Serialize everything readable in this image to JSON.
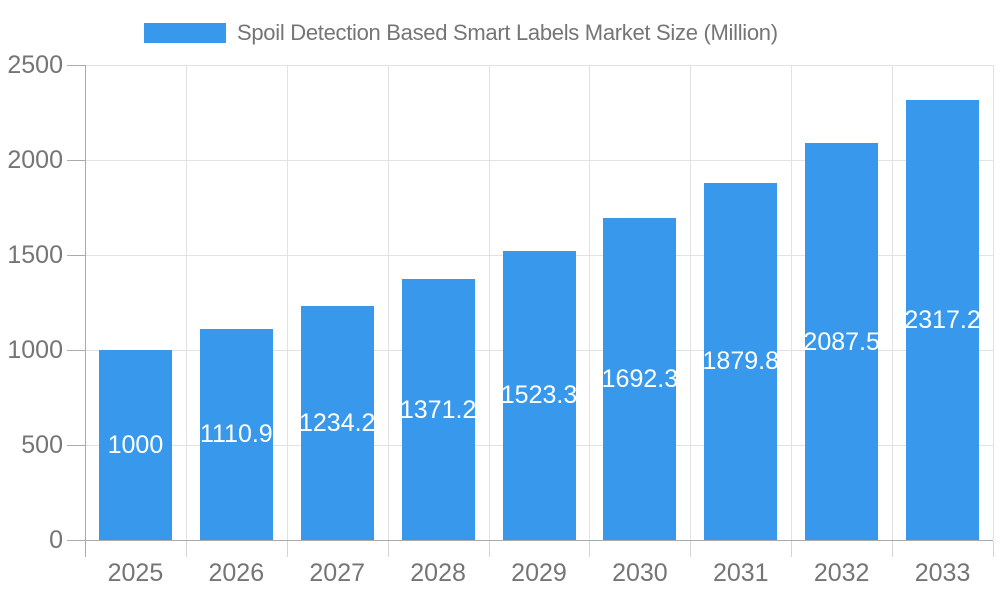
{
  "page": {
    "background": "#ffffff"
  },
  "legend": {
    "label": "Spoil Detection Based Smart Labels Market Size (Million)"
  },
  "chart_data": {
    "type": "bar",
    "title": "Spoil Detection Based Smart Labels Market Size (Million)",
    "categories": [
      "2025",
      "2026",
      "2027",
      "2028",
      "2029",
      "2030",
      "2031",
      "2032",
      "2033"
    ],
    "values": [
      1000,
      1110.9,
      1234.2,
      1371.2,
      1523.3,
      1692.3,
      1879.8,
      2087.5,
      2317.2
    ],
    "value_labels": [
      "1000",
      "1110.9",
      "1234.2",
      "1371.2",
      "1523.3",
      "1692.3",
      "1879.8",
      "2087.5",
      "2317.2"
    ],
    "xlabel": "",
    "ylabel": "",
    "ylim": [
      0,
      2500
    ],
    "y_ticks": [
      0,
      500,
      1000,
      1500,
      2000,
      2500
    ],
    "y_tick_labels": [
      "0",
      "500",
      "1000",
      "1500",
      "2000",
      "2500"
    ],
    "grid": true,
    "legend_position": "top",
    "bar_label_position": "inside-center",
    "colors": {
      "bar": "#3899ec",
      "bar_label": "#ffffff",
      "axis_label": "#757575",
      "title": "#757575",
      "axis_line": "#aaaaaa",
      "y_tick_line": "#ababab",
      "x_tick_line": "#d4d4d4",
      "grid_line": "#e2e2e2"
    }
  }
}
